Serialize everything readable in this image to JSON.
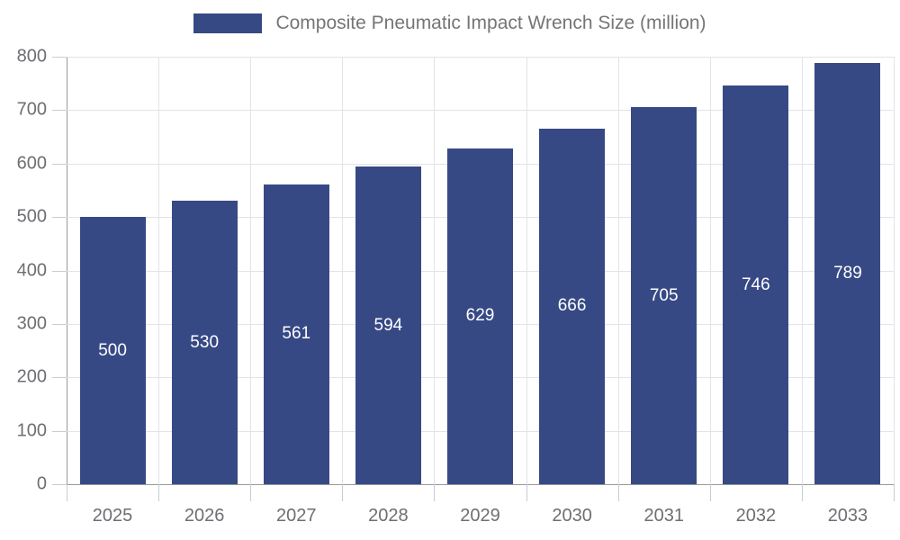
{
  "chart_data": {
    "type": "bar",
    "title": "Composite Pneumatic Impact Wrench Size (million)",
    "legend": [
      "Composite Pneumatic Impact Wrench Size (million)"
    ],
    "legend_position": "top-center",
    "categories": [
      "2025",
      "2026",
      "2027",
      "2028",
      "2029",
      "2030",
      "2031",
      "2032",
      "2033"
    ],
    "series": [
      {
        "name": "Composite Pneumatic Impact Wrench Size (million)",
        "values": [
          500,
          530,
          561,
          594,
          629,
          666,
          705,
          746,
          789
        ]
      }
    ],
    "bar_value_labels": [
      "500",
      "530",
      "561",
      "594",
      "629",
      "666",
      "705",
      "746",
      "789"
    ],
    "bar_label_position": "inside-center",
    "xlabel": "",
    "ylabel": "",
    "ylim": [
      0,
      800
    ],
    "yticks": [
      0,
      100,
      200,
      300,
      400,
      500,
      600,
      700,
      800
    ],
    "grid": true,
    "colors": {
      "bar": "#374985",
      "bar_label": "#ffffff",
      "grid_line": "#e3e3e8",
      "axis_line": "#999999",
      "tick_line": "#c9ccd4",
      "axis_text": "#6e6e73",
      "legend_text": "#757575",
      "background": "#ffffff"
    }
  }
}
